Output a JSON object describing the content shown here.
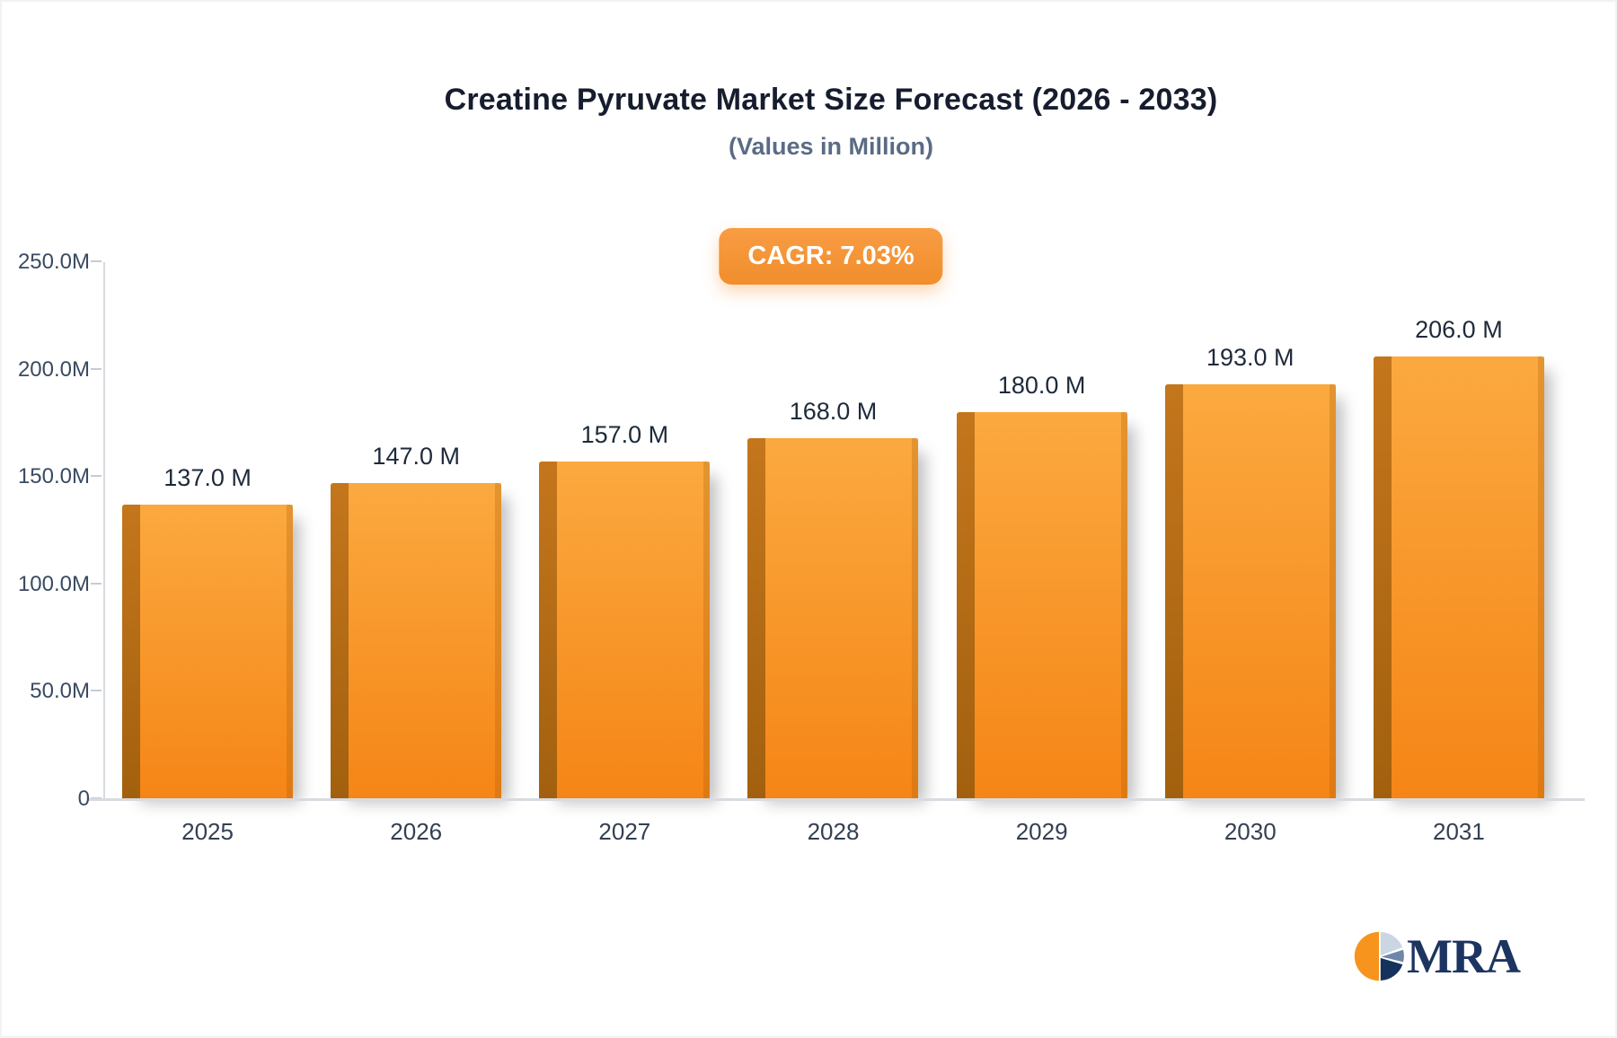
{
  "header": {
    "title": "Creatine Pyruvate Market Size Forecast (2026 - 2033)",
    "subtitle": "(Values in Million)",
    "cagr_badge": "CAGR: 7.03%"
  },
  "branding": {
    "logo_text": "MRA"
  },
  "chart_data": {
    "type": "bar",
    "title": "Creatine Pyruvate Market Size Forecast (2026 - 2033)",
    "subtitle": "(Values in Million)",
    "cagr": "7.03%",
    "unit": "Million",
    "categories": [
      "2025",
      "2026",
      "2027",
      "2028",
      "2029",
      "2030",
      "2031"
    ],
    "values": [
      137.0,
      147.0,
      157.0,
      168.0,
      180.0,
      193.0,
      206.0
    ],
    "value_labels": [
      "137.0 M",
      "147.0 M",
      "157.0 M",
      "168.0 M",
      "180.0 M",
      "193.0 M",
      "206.0 M"
    ],
    "ylim": [
      0,
      250
    ],
    "yticks": [
      {
        "value": 0,
        "label": "0"
      },
      {
        "value": 50,
        "label": "50.0M"
      },
      {
        "value": 100,
        "label": "100.0M"
      },
      {
        "value": 150,
        "label": "150.0M"
      },
      {
        "value": 200,
        "label": "200.0M"
      },
      {
        "value": 250,
        "label": "250.0M"
      }
    ],
    "grid": false,
    "legend": false,
    "bar_color": "#F7941E",
    "bar_side_color": "#B06A15",
    "badge_color": "#F18E2C"
  }
}
